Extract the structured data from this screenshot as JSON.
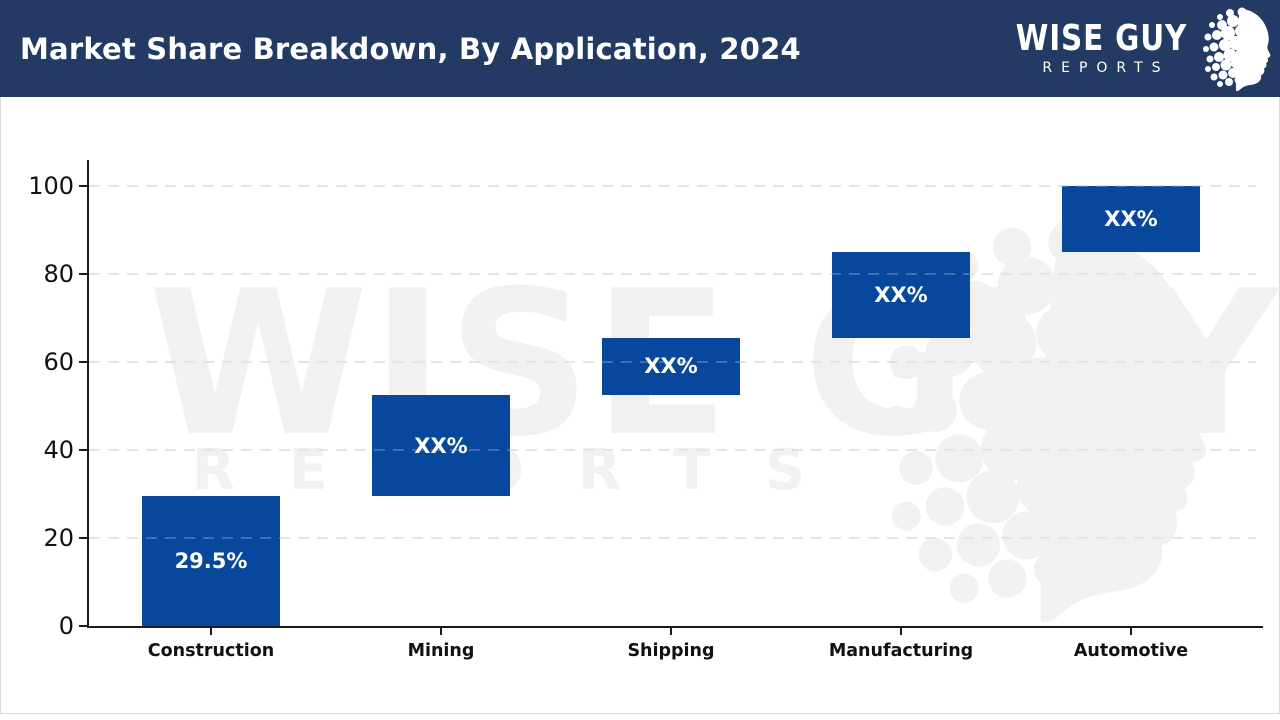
{
  "header": {
    "title": "Market Share Breakdown, By Application, 2024",
    "logo": {
      "name": "WISE GUY",
      "sub": "REPORTS"
    }
  },
  "watermark": {
    "name": "WISE GUY",
    "sub": "REPORTS"
  },
  "chart_data": {
    "type": "bar",
    "subtype": "floating-waterfall",
    "title": "Market Share Breakdown, By Application, 2024",
    "categories": [
      "Construction",
      "Mining",
      "Shipping",
      "Manufacturing",
      "Automotive"
    ],
    "segments": [
      {
        "category": "Construction",
        "start": 0,
        "end": 29.5,
        "value": 29.5,
        "label": "29.5%"
      },
      {
        "category": "Mining",
        "start": 29.5,
        "end": 52.5,
        "value": 23.0,
        "label": "XX%"
      },
      {
        "category": "Shipping",
        "start": 52.5,
        "end": 65.5,
        "value": 13.0,
        "label": "XX%"
      },
      {
        "category": "Manufacturing",
        "start": 65.5,
        "end": 85.0,
        "value": 19.5,
        "label": "XX%"
      },
      {
        "category": "Automotive",
        "start": 85.0,
        "end": 100.0,
        "value": 15.0,
        "label": "XX%"
      }
    ],
    "xlabel": "",
    "ylabel": "",
    "yticks": [
      0,
      20,
      40,
      60,
      80,
      100
    ],
    "ylim": [
      0,
      106
    ],
    "grid": "horizontal-dashed",
    "legend": "none",
    "bar_color": "#08489C",
    "bar_label_color": "#FFFFFF"
  },
  "colors": {
    "header_bg": "#223A64",
    "bar_blue": "#08489C",
    "grid": "#DCDCDC",
    "axis": "#1A1A1A",
    "watermark": "#F1F1F1",
    "frame_border": "#D9D9D9"
  }
}
